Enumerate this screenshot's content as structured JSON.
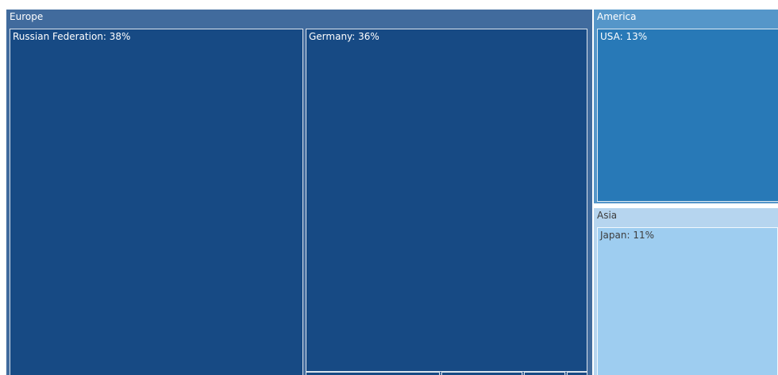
{
  "chart_data": {
    "type": "treemap",
    "groups": [
      {
        "name": "Europe",
        "color": "#416b9d",
        "label_color": "#ffffff",
        "children": [
          {
            "name": "Russian Federation",
            "label": "Russian Federation: 38%",
            "percent": 38,
            "color": "#174a84",
            "label_color": "#ffffff"
          },
          {
            "name": "Germany",
            "label": "Germany: 36%",
            "percent": 36,
            "color": "#174a84",
            "label_color": "#ffffff"
          },
          {
            "name": "",
            "label": "",
            "color": "#174a84",
            "label_color": "#ffffff"
          },
          {
            "name": "",
            "label": "",
            "color": "#174a84",
            "label_color": "#ffffff"
          },
          {
            "name": "",
            "label": "",
            "color": "#174a84",
            "label_color": "#ffffff"
          },
          {
            "name": "",
            "label": "",
            "color": "#174a84",
            "label_color": "#ffffff"
          }
        ]
      },
      {
        "name": "America",
        "color": "#5596c9",
        "label_color": "#ffffff",
        "children": [
          {
            "name": "USA",
            "label": "USA: 13%",
            "percent": 13,
            "color": "#2879b7",
            "label_color": "#ffffff"
          }
        ]
      },
      {
        "name": "Asia",
        "color": "#b6d5ef",
        "label_color": "#3d3d3d",
        "children": [
          {
            "name": "Japan",
            "label": "Japan: 11%",
            "percent": 11,
            "color": "#9ecdf0",
            "label_color": "#3d3d3d"
          }
        ]
      }
    ]
  }
}
